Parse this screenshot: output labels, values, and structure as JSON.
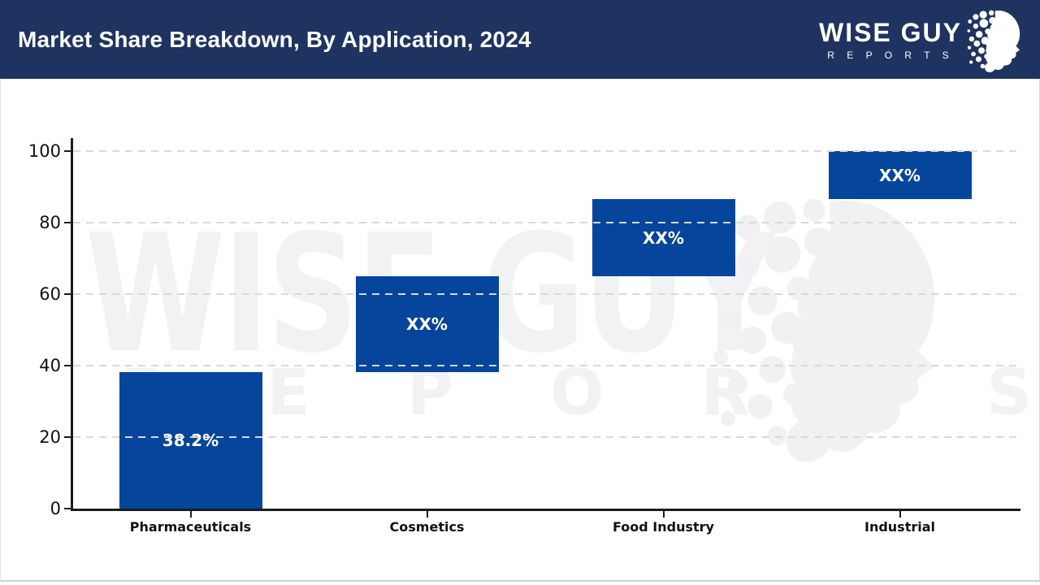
{
  "header": {
    "title": "Market Share Breakdown, By Application, 2024",
    "logo_line1": "WISE GUY",
    "logo_line2": "R E P O R T S"
  },
  "watermark": {
    "line1": "WISE GUY",
    "line2": "R E P O R T S"
  },
  "chart_data": {
    "type": "bar",
    "variant": "waterfall-floating-bars",
    "title": "Market Share Breakdown, By Application, 2024",
    "categories": [
      "Pharmaceuticals",
      "Cosmetics",
      "Food Industry",
      "Industrial"
    ],
    "segments": [
      {
        "category": "Pharmaceuticals",
        "start": 0,
        "end": 38.2,
        "label": "38.2%"
      },
      {
        "category": "Cosmetics",
        "start": 38.2,
        "end": 65.0,
        "label": "XX%"
      },
      {
        "category": "Food Industry",
        "start": 65.0,
        "end": 86.5,
        "label": "XX%"
      },
      {
        "category": "Industrial",
        "start": 86.5,
        "end": 100,
        "label": "XX%"
      }
    ],
    "xlabel": "",
    "ylabel": "",
    "ylim": [
      0,
      100
    ],
    "yticks": [
      0,
      20,
      40,
      60,
      80,
      100
    ],
    "grid": "horizontal dashed, drawn above bars",
    "legend": "none",
    "bar_color": "#06459c",
    "bar_label_color": "#ffffff"
  },
  "colors": {
    "header_bg": "#1f3361",
    "bar_blue": "#06459c",
    "gridline": "#d9d9d9",
    "axis": "#1c1c1c",
    "watermark": "#f2f2f4",
    "page_bg": "#ffffff"
  }
}
